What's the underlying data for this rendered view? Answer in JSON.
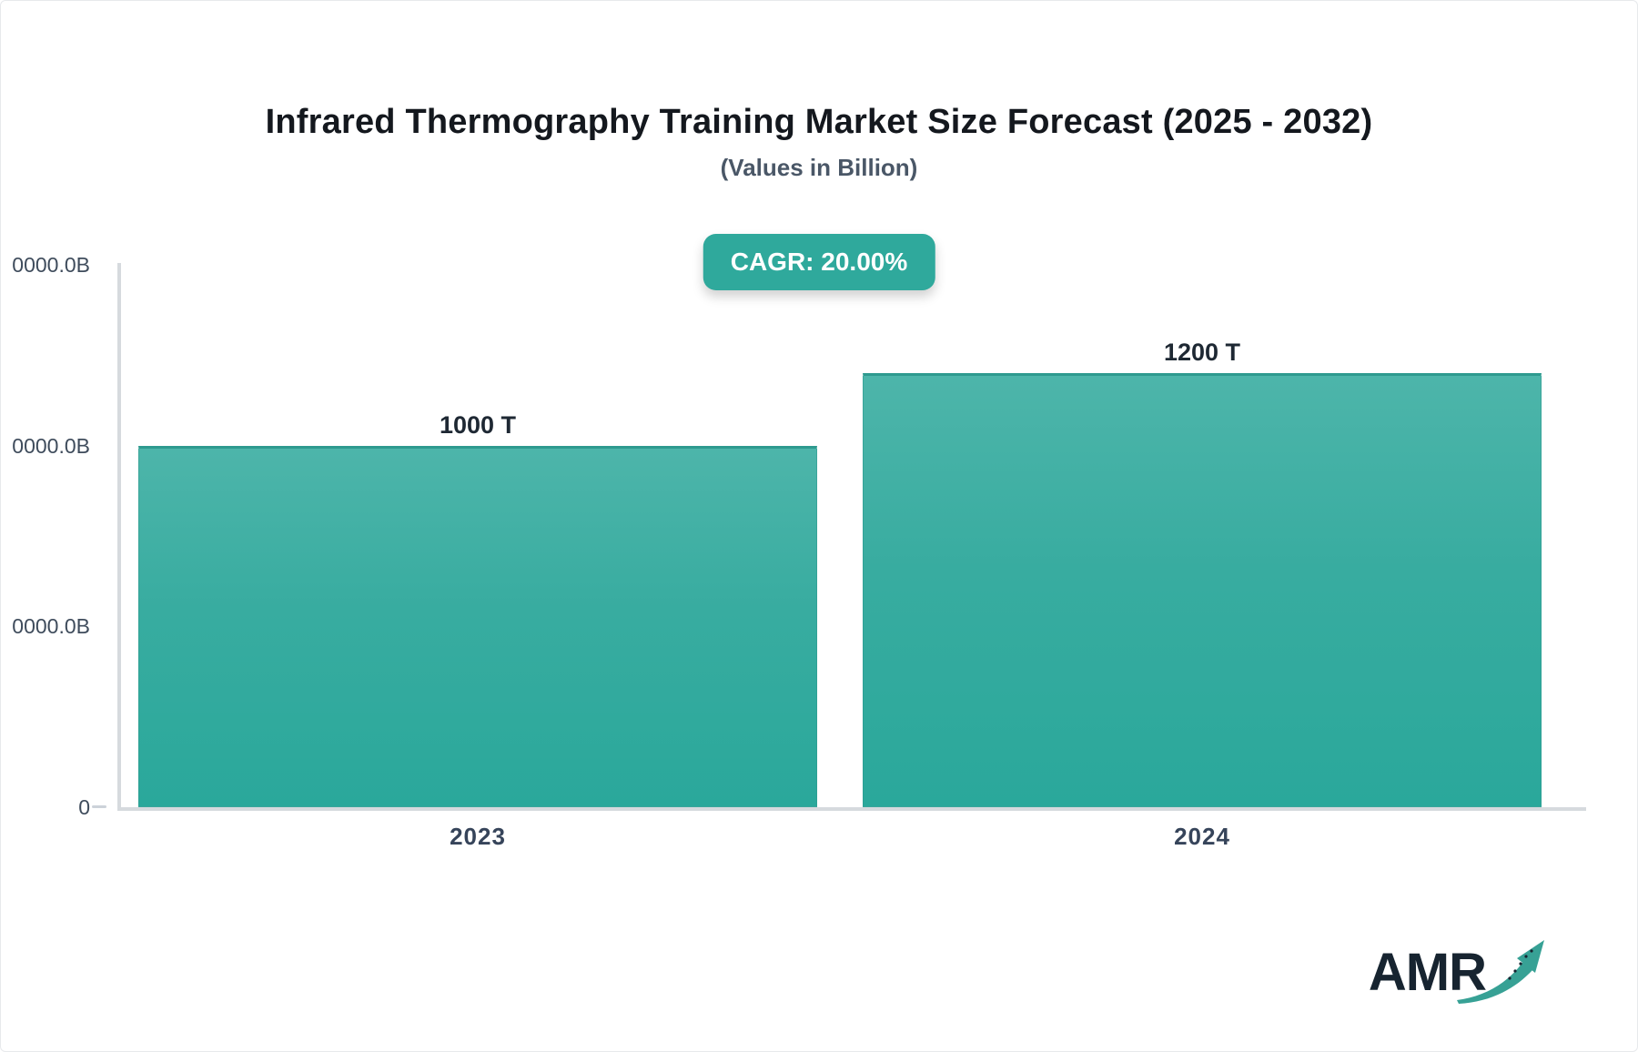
{
  "chart_data": {
    "type": "bar",
    "title": "Infrared Thermography Training Market Size Forecast (2025 - 2032)",
    "subtitle": "(Values in Billion)",
    "cagr_label": "CAGR: 20.00%",
    "categories": [
      "2023",
      "2024"
    ],
    "values": [
      1000,
      1200
    ],
    "value_labels": [
      "1000 T",
      "1200 T"
    ],
    "y_tick_labels": [
      "0000.0B",
      "0000.0B",
      "0000.0B",
      "0"
    ],
    "ylim": [
      0,
      1500
    ],
    "grid": false,
    "legend": false,
    "bar_color_top": "#4db5aa",
    "bar_color_bottom": "#2aa89b"
  },
  "colors": {
    "bar_top": "#4db5aa",
    "bar_bottom": "#2aa89b",
    "bar_border": "#2e9a8f",
    "badge_bg": "#2fa99c",
    "axis": "#d6dade",
    "title_text": "#14181e",
    "subtitle_text": "#4a5767",
    "tick_text": "#3f4c5c",
    "value_text": "#1e2833",
    "logo_navy": "#172430",
    "logo_teal": "#37a195"
  },
  "logo": {
    "text": "AMR",
    "arrow_icon": "trending-up-arrow"
  }
}
